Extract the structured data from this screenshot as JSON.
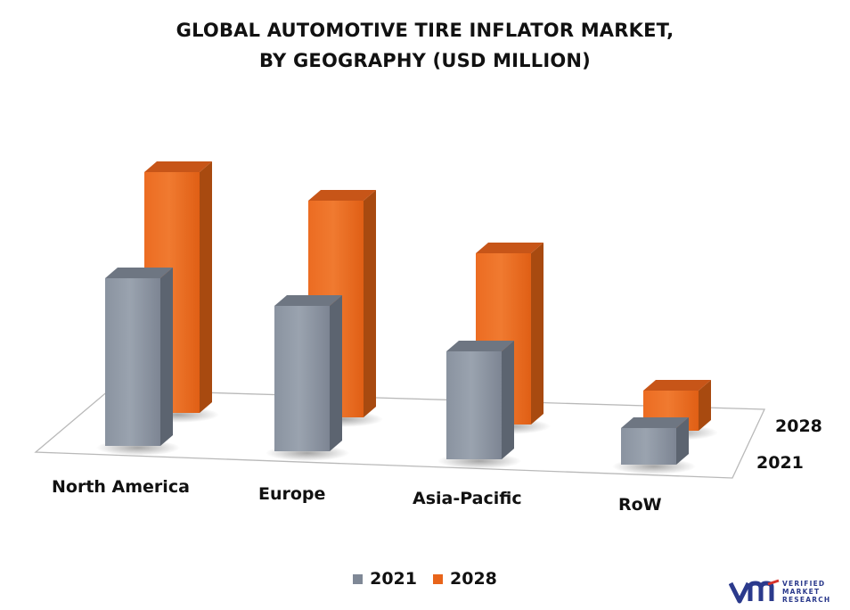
{
  "chart_data": {
    "type": "bar",
    "title_line1": "GLOBAL AUTOMOTIVE TIRE INFLATOR MARKET,",
    "title_line2": "BY GEOGRAPHY (USD MILLION)",
    "categories": [
      "North America",
      "Europe",
      "Asia-Pacific",
      "RoW"
    ],
    "series": [
      {
        "name": "2021",
        "values": [
          188,
          163,
          121,
          41
        ],
        "color": "#7f8896"
      },
      {
        "name": "2028",
        "values": [
          270,
          243,
          192,
          45
        ],
        "color": "#e8641a"
      }
    ],
    "depth_labels": [
      "2028",
      "2021"
    ],
    "legend": {
      "position": "bottom",
      "items": [
        "2021",
        "2028"
      ]
    },
    "grid": false,
    "style": "3d-clustered-column"
  },
  "logo": {
    "brand_lines": [
      "VERIFIED",
      "MARKET",
      "RESEARCH"
    ],
    "colors": {
      "primary": "#2b3a8c",
      "accent": "#d6322a"
    }
  }
}
